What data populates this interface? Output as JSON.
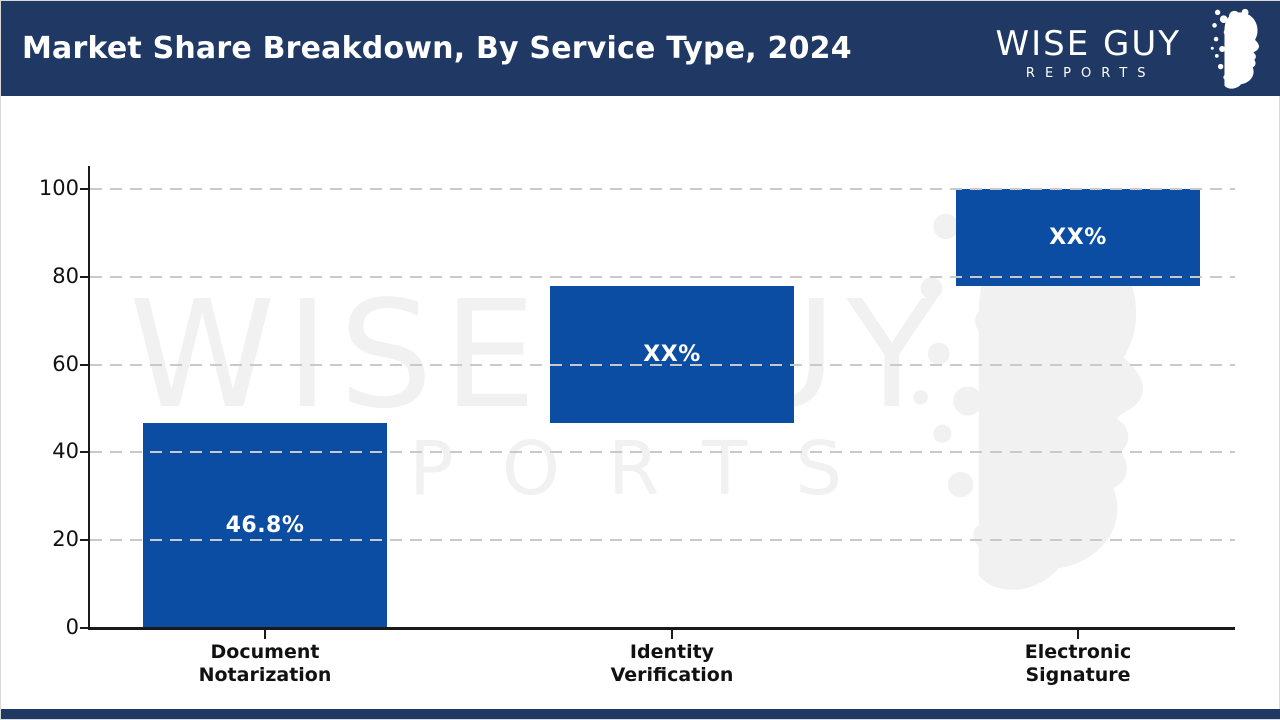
{
  "header": {
    "title": "Market Share Breakdown, By Service Type, 2024",
    "logo": {
      "line1": "WISE GUY",
      "line2": "REPORTS"
    }
  },
  "watermark": {
    "line1": "WISE GUY",
    "line2": "REPORTS"
  },
  "colors": {
    "header_navy": "#1F3864",
    "bar_blue": "#0B4DA2",
    "gridline_gray": "#c9c9c9",
    "watermark_gray": "#f1f1f1",
    "axis_black": "#1a1a1a",
    "label_white": "#ffffff"
  },
  "chart_data": {
    "type": "bar",
    "subtype": "waterfall-stepped",
    "title": "Market Share Breakdown, By Service Type, 2024",
    "xlabel": "",
    "ylabel": "",
    "categories": [
      [
        "Document",
        "Notarization"
      ],
      [
        "Identity",
        "Verification"
      ],
      [
        "Electronic",
        "Signature"
      ]
    ],
    "segments": [
      {
        "category": "Document Notarization",
        "start": 0,
        "end": 46.8,
        "label": "46.8%"
      },
      {
        "category": "Identity Verification",
        "start": 46.8,
        "end": 78,
        "label": "XX%"
      },
      {
        "category": "Electronic Signature",
        "start": 78,
        "end": 100,
        "label": "XX%"
      }
    ],
    "yticks": [
      0,
      20,
      40,
      60,
      80,
      100
    ],
    "ylim": [
      0,
      105
    ],
    "grid": "horizontal-dashed",
    "grid_on_top_of_bars": true,
    "legend": "none",
    "bar_color": "#0B4DA2",
    "value_label_color": "#ffffff"
  }
}
